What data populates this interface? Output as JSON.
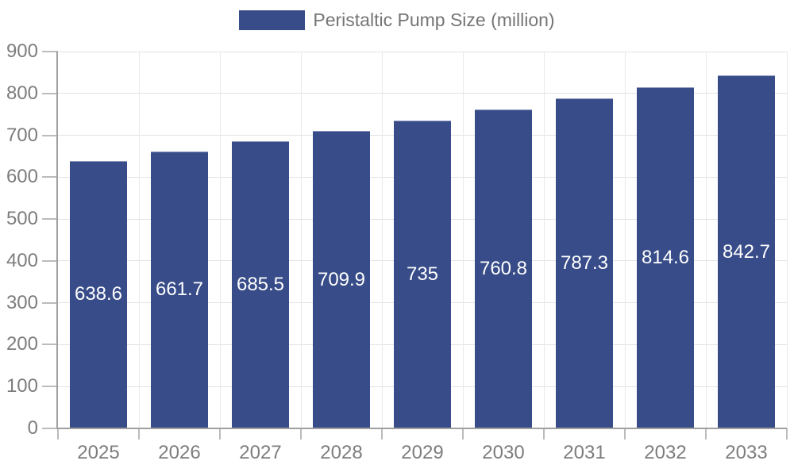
{
  "legend": {
    "label": "Peristaltic Pump Size (million)"
  },
  "chart_data": {
    "type": "bar",
    "title": "Peristaltic Pump Size (million)",
    "series_name": "Peristaltic Pump Size (million)",
    "categories": [
      "2025",
      "2026",
      "2027",
      "2028",
      "2029",
      "2030",
      "2031",
      "2032",
      "2033"
    ],
    "values": [
      638.6,
      661.7,
      685.5,
      709.9,
      735,
      760.8,
      787.3,
      814.6,
      842.7
    ],
    "xlabel": "",
    "ylabel": "",
    "ylim": [
      0,
      900
    ],
    "ytick_step": 100,
    "grid": true,
    "legend_position": "top-center",
    "colors": {
      "bar": "#374c88",
      "bar_border_top": "#8a94bd",
      "bar_label": "#ffffff",
      "axis_line": "#a0a0a0",
      "tick_mark": "#bcbcbc",
      "grid_line": "#e3e3e3",
      "grid_line_vertical": "#e9e9e9",
      "tick_label": "#7d7d7d",
      "legend_text": "#757575",
      "background": "#ffffff"
    }
  }
}
